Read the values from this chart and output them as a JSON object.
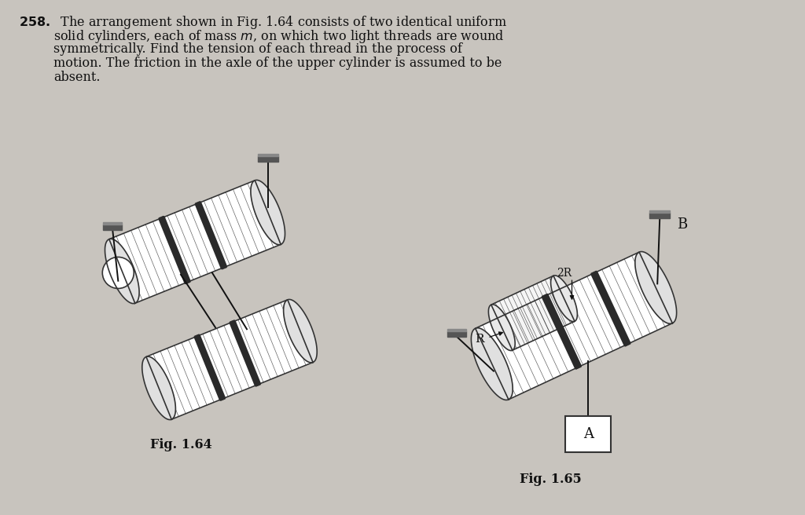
{
  "bg_color": "#c8c4be",
  "text_color": "#111111",
  "fig164_label": "Fig. 1.64",
  "fig165_label": "Fig. 1.65",
  "label_B": "B",
  "label_A": "A",
  "label_R": "R",
  "label_2R": "2R",
  "cylinder_body_color": "#ffffff",
  "cylinder_end_color": "#e0e0e0",
  "cylinder_hatch_color": "#333333",
  "band_color": "#2a2a2a",
  "thread_color": "#111111",
  "bracket_color": "#555555",
  "box_color": "#ffffff",
  "line_width": 1.2,
  "hatch_alpha": 0.75
}
